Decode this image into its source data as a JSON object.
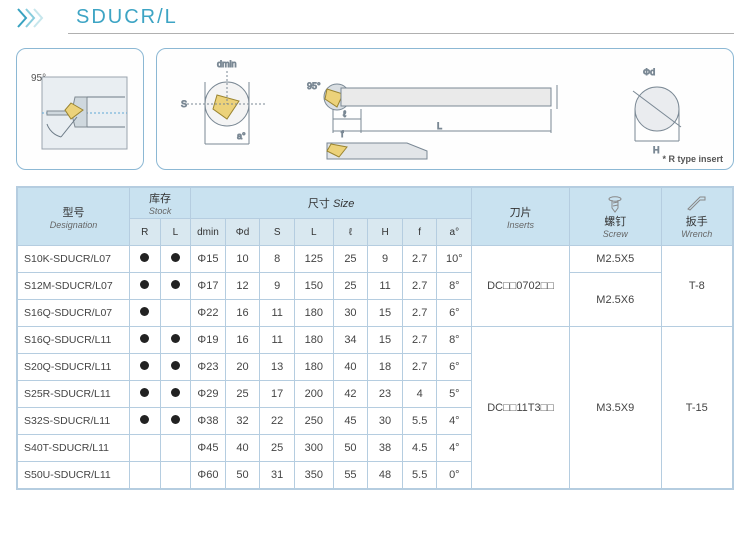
{
  "header": {
    "title": "SDUCR/L"
  },
  "diagrams": {
    "left_angle": "95°",
    "dmin_label": "dmin",
    "a_label": "a°",
    "s_label": "S",
    "f_label": "f",
    "l_label": "ℓ",
    "L_label": "L",
    "angle95": "95°",
    "phid_label": "Φd",
    "H_label": "H",
    "note": "* R type insert"
  },
  "table": {
    "headers": {
      "designation_cn": "型号",
      "designation_en": "Designation",
      "stock_cn": "库存",
      "stock_en": "Stock",
      "size_cn": "尺寸",
      "size_en": "Size",
      "inserts_cn": "刀片",
      "inserts_en": "Inserts",
      "screw_cn": "螺钉",
      "screw_en": "Screw",
      "wrench_cn": "扳手",
      "wrench_en": "Wrench",
      "R": "R",
      "L": "L",
      "dmin": "dmin",
      "phid": "Φd",
      "S": "S",
      "sizeL": "L",
      "ell": "ℓ",
      "H": "H",
      "f": "f",
      "a": "a°"
    },
    "rows": [
      {
        "d": "S10K-SDUCR/L07",
        "R": true,
        "L": true,
        "dmin": "Φ15",
        "phid": "10",
        "S": "8",
        "Lv": "125",
        "ell": "25",
        "H": "9",
        "f": "2.7",
        "a": "10°"
      },
      {
        "d": "S12M-SDUCR/L07",
        "R": true,
        "L": true,
        "dmin": "Φ17",
        "phid": "12",
        "S": "9",
        "Lv": "150",
        "ell": "25",
        "H": "11",
        "f": "2.7",
        "a": "8°"
      },
      {
        "d": "S16Q-SDUCR/L07",
        "R": true,
        "L": false,
        "dmin": "Φ22",
        "phid": "16",
        "S": "11",
        "Lv": "180",
        "ell": "30",
        "H": "15",
        "f": "2.7",
        "a": "6°"
      },
      {
        "d": "S16Q-SDUCR/L11",
        "R": true,
        "L": true,
        "dmin": "Φ19",
        "phid": "16",
        "S": "11",
        "Lv": "180",
        "ell": "34",
        "H": "15",
        "f": "2.7",
        "a": "8°"
      },
      {
        "d": "S20Q-SDUCR/L11",
        "R": true,
        "L": true,
        "dmin": "Φ23",
        "phid": "20",
        "S": "13",
        "Lv": "180",
        "ell": "40",
        "H": "18",
        "f": "2.7",
        "a": "6°"
      },
      {
        "d": "S25R-SDUCR/L11",
        "R": true,
        "L": true,
        "dmin": "Φ29",
        "phid": "25",
        "S": "17",
        "Lv": "200",
        "ell": "42",
        "H": "23",
        "f": "4",
        "a": "5°"
      },
      {
        "d": "S32S-SDUCR/L11",
        "R": true,
        "L": true,
        "dmin": "Φ38",
        "phid": "32",
        "S": "22",
        "Lv": "250",
        "ell": "45",
        "H": "30",
        "f": "5.5",
        "a": "4°"
      },
      {
        "d": "S40T-SDUCR/L11",
        "R": false,
        "L": false,
        "dmin": "Φ45",
        "phid": "40",
        "S": "25",
        "Lv": "300",
        "ell": "50",
        "H": "38",
        "f": "4.5",
        "a": "4°"
      },
      {
        "d": "S50U-SDUCR/L11",
        "R": false,
        "L": false,
        "dmin": "Φ60",
        "phid": "50",
        "S": "31",
        "Lv": "350",
        "ell": "55",
        "H": "48",
        "f": "5.5",
        "a": "0°"
      }
    ],
    "inserts": [
      {
        "span": 3,
        "label": "DC□□0702□□"
      },
      {
        "span": 6,
        "label": "DC□□11T3□□"
      }
    ],
    "screw": [
      {
        "span": 1,
        "label": "M2.5X5"
      },
      {
        "span": 2,
        "label": "M2.5X6"
      },
      {
        "span": 6,
        "label": "M3.5X9"
      }
    ],
    "wrench": [
      {
        "span": 3,
        "label": "T-8"
      },
      {
        "span": 6,
        "label": "T-15"
      }
    ]
  },
  "colors": {
    "accent": "#3da4c4",
    "border": "#b5cde0",
    "header_bg": "#c9e2f0",
    "diag_border": "#8cb8d4",
    "line_light": "#b0b0b0"
  }
}
